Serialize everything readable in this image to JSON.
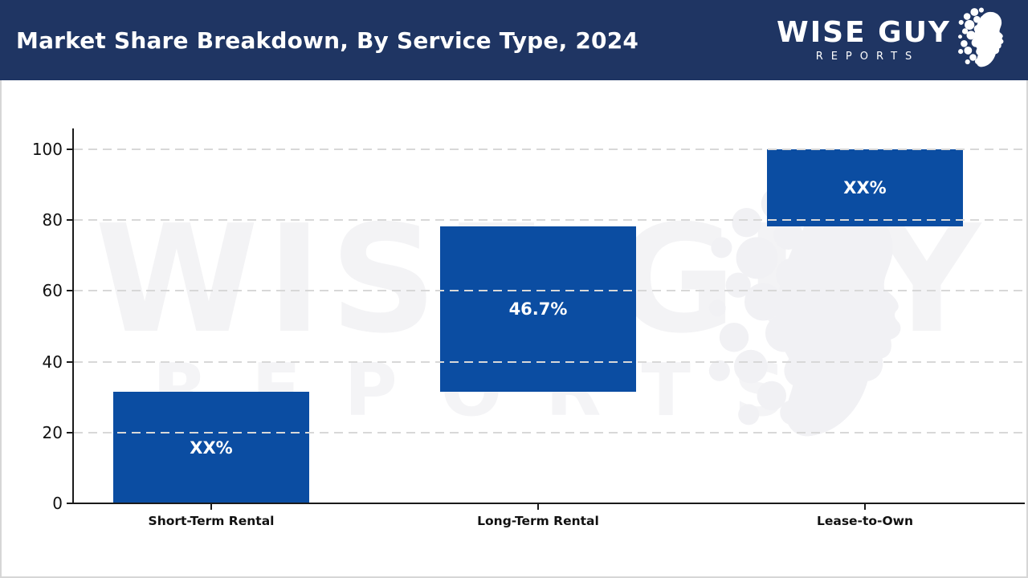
{
  "header": {
    "title": "Market Share Breakdown, By Service Type, 2024",
    "logo": {
      "wordmark": "WISE GUY",
      "subtext": "REPORTS"
    }
  },
  "watermark": {
    "wordmark": "WISE GUY",
    "subtext": "REPORTS"
  },
  "colors": {
    "header_bg": "#1f3563",
    "bar": "#0b4da2",
    "bar_label": "#ffffff",
    "gridline": "#d8d8d8",
    "axis": "#1a1a1a",
    "watermark": "#f3f3f5"
  },
  "chart_data": {
    "type": "bar",
    "variant": "waterfall",
    "title": "Market Share Breakdown, By Service Type, 2024",
    "categories": [
      "Short-Term Rental",
      "Long-Term Rental",
      "Lease-to-Own"
    ],
    "segments": [
      {
        "category": "Short-Term Rental",
        "start": 0,
        "end": 31.5,
        "label": "XX%"
      },
      {
        "category": "Long-Term Rental",
        "start": 31.5,
        "end": 78.2,
        "label": "46.7%"
      },
      {
        "category": "Lease-to-Own",
        "start": 78.2,
        "end": 100,
        "label": "XX%"
      }
    ],
    "ylim": [
      0,
      106
    ],
    "yticks": [
      0,
      20,
      40,
      60,
      80,
      100
    ],
    "ytick_labels": [
      "0",
      "20",
      "40",
      "60",
      "80",
      "100"
    ],
    "grid": "horizontal-dashed",
    "grid_on_top_of_bars": true,
    "legend": "none",
    "xlabel": "",
    "ylabel": ""
  }
}
